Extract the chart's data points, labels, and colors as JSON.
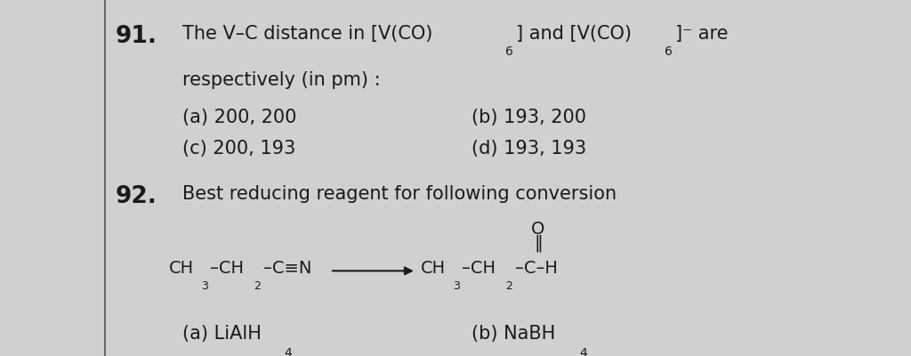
{
  "bg_color": "#d0d0d0",
  "text_color": "#222222",
  "bold_color": "#111111",
  "line_color": "#555555",
  "q91_num": "91.",
  "q91_t1": "The V–C distance in [V(CO)",
  "q91_sub1": "6",
  "q91_t2": "] and [V(CO)",
  "q91_sub2": "6",
  "q91_t3": "]⁻ are",
  "q91_line2": "respectively (in pm) :",
  "opt_a": "(a) 200, 200",
  "opt_b": "(b) 193, 200",
  "opt_c": "(c) 200, 193",
  "opt_d": "(d) 193, 193",
  "q92_num": "92.",
  "q92_text": "Best reducing reagent for following conversion",
  "text_color_dark": "#1a1a1a",
  "fs_heading": 19,
  "fs_body": 15,
  "fs_opt": 15,
  "fs_sub": 10,
  "fs_chem": 14,
  "fs_chem_sub": 9
}
